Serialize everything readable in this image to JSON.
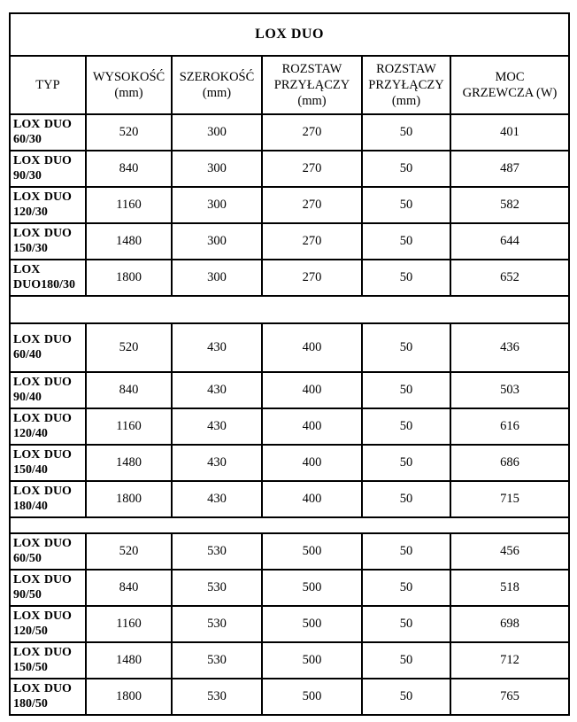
{
  "table": {
    "title": "LOX DUO",
    "columns": [
      {
        "id": "typ",
        "text": "TYP"
      },
      {
        "id": "wysokosc",
        "text": "WYSOKOŚĆ\n(mm)"
      },
      {
        "id": "szerokosc",
        "text": "SZEROKOŚĆ\n(mm)"
      },
      {
        "id": "rozstaw-przylaczy-1",
        "text": "ROZSTAW\nPRZYŁĄCZY\n(mm)"
      },
      {
        "id": "rozstaw-przylaczy-2",
        "text": "ROZSTAW\nPRZYŁĄCZY\n(mm)"
      },
      {
        "id": "moc-grzewcza",
        "text": "MOC\nGRZEWCZA (W)"
      }
    ],
    "groups": [
      {
        "rows": [
          {
            "type": "LOX DUO 60/30",
            "height_mm": "520",
            "width_mm": "300",
            "conn_spacing_mm": "270",
            "conn_spacing2_mm": "50",
            "power_w": "401",
            "power_top": false,
            "tall": false
          },
          {
            "type": "LOX DUO 90/30",
            "height_mm": "840",
            "width_mm": "300",
            "conn_spacing_mm": "270",
            "conn_spacing2_mm": "50",
            "power_w": "487",
            "power_top": false,
            "tall": false
          },
          {
            "type": "LOX DUO 120/30",
            "height_mm": "1160",
            "width_mm": "300",
            "conn_spacing_mm": "270",
            "conn_spacing2_mm": "50",
            "power_w": "582",
            "power_top": true,
            "tall": false
          },
          {
            "type": "LOX DUO 150/30",
            "height_mm": "1480",
            "width_mm": "300",
            "conn_spacing_mm": "270",
            "conn_spacing2_mm": "50",
            "power_w": "644",
            "power_top": true,
            "tall": false
          },
          {
            "type": "LOX DUO180/30",
            "height_mm": "1800",
            "width_mm": "300",
            "conn_spacing_mm": "270",
            "conn_spacing2_mm": "50",
            "power_w": "652",
            "power_top": true,
            "tall": false
          }
        ]
      },
      {
        "rows": [
          {
            "type": "LOX DUO 60/40",
            "height_mm": "520",
            "width_mm": "430",
            "conn_spacing_mm": "400",
            "conn_spacing2_mm": "50",
            "power_w": "436",
            "power_top": false,
            "tall": true
          },
          {
            "type": "LOX DUO 90/40",
            "height_mm": "840",
            "width_mm": "430",
            "conn_spacing_mm": "400",
            "conn_spacing2_mm": "50",
            "power_w": "503",
            "power_top": false,
            "tall": false
          },
          {
            "type": "LOX DUO 120/40",
            "height_mm": "1160",
            "width_mm": "430",
            "conn_spacing_mm": "400",
            "conn_spacing2_mm": "50",
            "power_w": "616",
            "power_top": false,
            "tall": false
          },
          {
            "type": "LOX DUO 150/40",
            "height_mm": "1480",
            "width_mm": "430",
            "conn_spacing_mm": "400",
            "conn_spacing2_mm": "50",
            "power_w": "686",
            "power_top": true,
            "tall": false
          },
          {
            "type": "LOX DUO 180/40",
            "height_mm": "1800",
            "width_mm": "430",
            "conn_spacing_mm": "400",
            "conn_spacing2_mm": "50",
            "power_w": "715",
            "power_top": false,
            "tall": false
          }
        ]
      },
      {
        "rows": [
          {
            "type": "LOX DUO 60/50",
            "height_mm": "520",
            "width_mm": "530",
            "conn_spacing_mm": "500",
            "conn_spacing2_mm": "50",
            "power_w": "456",
            "power_top": false,
            "tall": false
          },
          {
            "type": "LOX DUO 90/50",
            "height_mm": "840",
            "width_mm": "530",
            "conn_spacing_mm": "500",
            "conn_spacing2_mm": "50",
            "power_w": "518",
            "power_top": false,
            "tall": false
          },
          {
            "type": "LOX DUO 120/50",
            "height_mm": "1160",
            "width_mm": "530",
            "conn_spacing_mm": "500",
            "conn_spacing2_mm": "50",
            "power_w": "698",
            "power_top": false,
            "tall": false
          },
          {
            "type": "LOX DUO 150/50",
            "height_mm": "1480",
            "width_mm": "530",
            "conn_spacing_mm": "500",
            "conn_spacing2_mm": "50",
            "power_w": "712",
            "power_top": false,
            "tall": false
          },
          {
            "type": "LOX DUO 180/50",
            "height_mm": "1800",
            "width_mm": "530",
            "conn_spacing_mm": "500",
            "conn_spacing2_mm": "50",
            "power_w": "765",
            "power_top": true,
            "tall": false
          }
        ]
      }
    ]
  },
  "colors": {
    "background": "#ffffff",
    "border": "#000000",
    "text": "#000000"
  }
}
